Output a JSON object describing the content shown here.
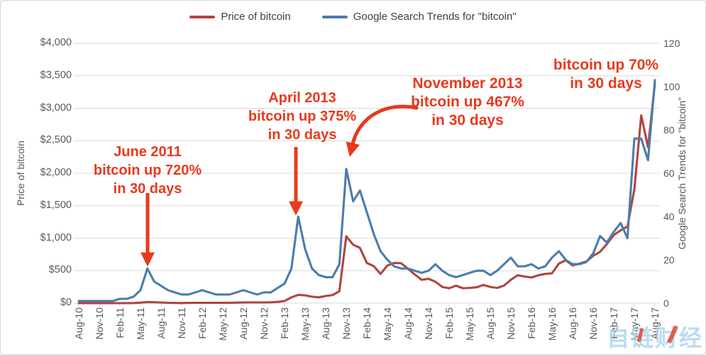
{
  "legend": [
    {
      "label": "Price of bitcoin",
      "color": "#b0453f"
    },
    {
      "label": "Google Search Trends for \"bitcoin\"",
      "color": "#4c7cad"
    }
  ],
  "annotations": [
    {
      "id": "jun11",
      "lines": [
        "June 2011",
        "bitcoin up 720%",
        "in 30 days"
      ],
      "arrow": "straight-down",
      "points_to": "Jun-11 search peak"
    },
    {
      "id": "apr13",
      "lines": [
        "April 2013",
        "bitcoin up 375%",
        "in 30 days"
      ],
      "arrow": "straight-down",
      "points_to": "Apr-13 search peak"
    },
    {
      "id": "nov13",
      "lines": [
        "November 2013",
        "bitcoin up 467%",
        "in 30 days"
      ],
      "arrow": "curved",
      "points_to": "Nov-13 search peak"
    },
    {
      "id": "y2017",
      "lines": [
        "bitcoin up 70%",
        "in 30 days"
      ],
      "arrow": "none",
      "points_to": "Aug-17 spike"
    }
  ],
  "annotation_color": "#e8391d",
  "watermark": "自链财经",
  "chart_data": {
    "type": "line",
    "title": "",
    "x_interval": "monthly",
    "x_start": "Aug-10",
    "x_end": "Aug-17",
    "x_tick_labels": [
      "Aug-10",
      "Nov-10",
      "Feb-11",
      "May-11",
      "Aug-11",
      "Nov-11",
      "Feb-12",
      "May-12",
      "Aug-12",
      "Nov-12",
      "Feb-13",
      "May-13",
      "Aug-13",
      "Nov-13",
      "Feb-14",
      "May-14",
      "Aug-14",
      "Nov-14",
      "Feb-15",
      "May-15",
      "Aug-15",
      "Nov-15",
      "Feb-16",
      "May-16",
      "Aug-16",
      "Nov-16",
      "Feb-17",
      "May-17",
      "Aug-17"
    ],
    "x_tick_every_n_months": 3,
    "grid": "horizontal-only",
    "legend_position": "top-center",
    "left_axis": {
      "label": "Price of bitcoin",
      "range": [
        0,
        4000
      ],
      "tick_step": 500,
      "tick_labels": [
        "$0",
        "$500",
        "$1,000",
        "$1,500",
        "$2,000",
        "$2,500",
        "$3,000",
        "$3,500",
        "$4,000"
      ]
    },
    "right_axis": {
      "label": "Google Search Trends for \"bitcoin\"",
      "range": [
        0,
        120
      ],
      "tick_step": 20,
      "tick_labels": [
        "0",
        "20",
        "40",
        "60",
        "80",
        "100",
        "120"
      ]
    },
    "series": [
      {
        "name": "Price of bitcoin",
        "axis": "left",
        "color": "#b0453f",
        "values": [
          0.07,
          0.06,
          0.1,
          0.2,
          0.25,
          0.4,
          0.9,
          0.8,
          1.8,
          8,
          18,
          14,
          10,
          5,
          3,
          2.5,
          4,
          6,
          5,
          5,
          5,
          5,
          6.5,
          8,
          11,
          12,
          11,
          12,
          13.5,
          20,
          33,
          90,
          128,
          120,
          100,
          90,
          110,
          125,
          185,
          1030,
          900,
          850,
          620,
          570,
          450,
          580,
          620,
          615,
          530,
          440,
          360,
          375,
          330,
          250,
          230,
          270,
          230,
          235,
          245,
          280,
          250,
          235,
          270,
          360,
          430,
          410,
          395,
          430,
          450,
          460,
          610,
          660,
          580,
          610,
          640,
          730,
          790,
          910,
          1050,
          1120,
          1180,
          1750,
          2890,
          2400,
          3380
        ]
      },
      {
        "name": "Google Search Trends for \"bitcoin\"",
        "axis": "right",
        "color": "#4c7cad",
        "values": [
          1,
          1,
          1,
          1,
          1,
          1,
          2,
          2,
          3,
          6,
          16,
          10,
          8,
          6,
          5,
          4,
          4,
          5,
          6,
          5,
          4,
          4,
          4,
          5,
          6,
          5,
          4,
          5,
          5,
          7,
          9,
          16,
          40,
          25,
          16,
          13,
          12,
          12,
          18,
          62,
          47,
          52,
          42,
          32,
          24,
          20,
          17,
          16,
          16,
          15,
          14,
          15,
          18,
          15,
          13,
          12,
          13,
          14,
          15,
          15,
          13,
          15,
          18,
          21,
          17,
          17,
          18,
          16,
          17,
          21,
          24,
          20,
          18,
          18,
          19,
          23,
          31,
          28,
          33,
          37,
          30,
          76,
          76,
          66,
          103
        ]
      }
    ]
  }
}
